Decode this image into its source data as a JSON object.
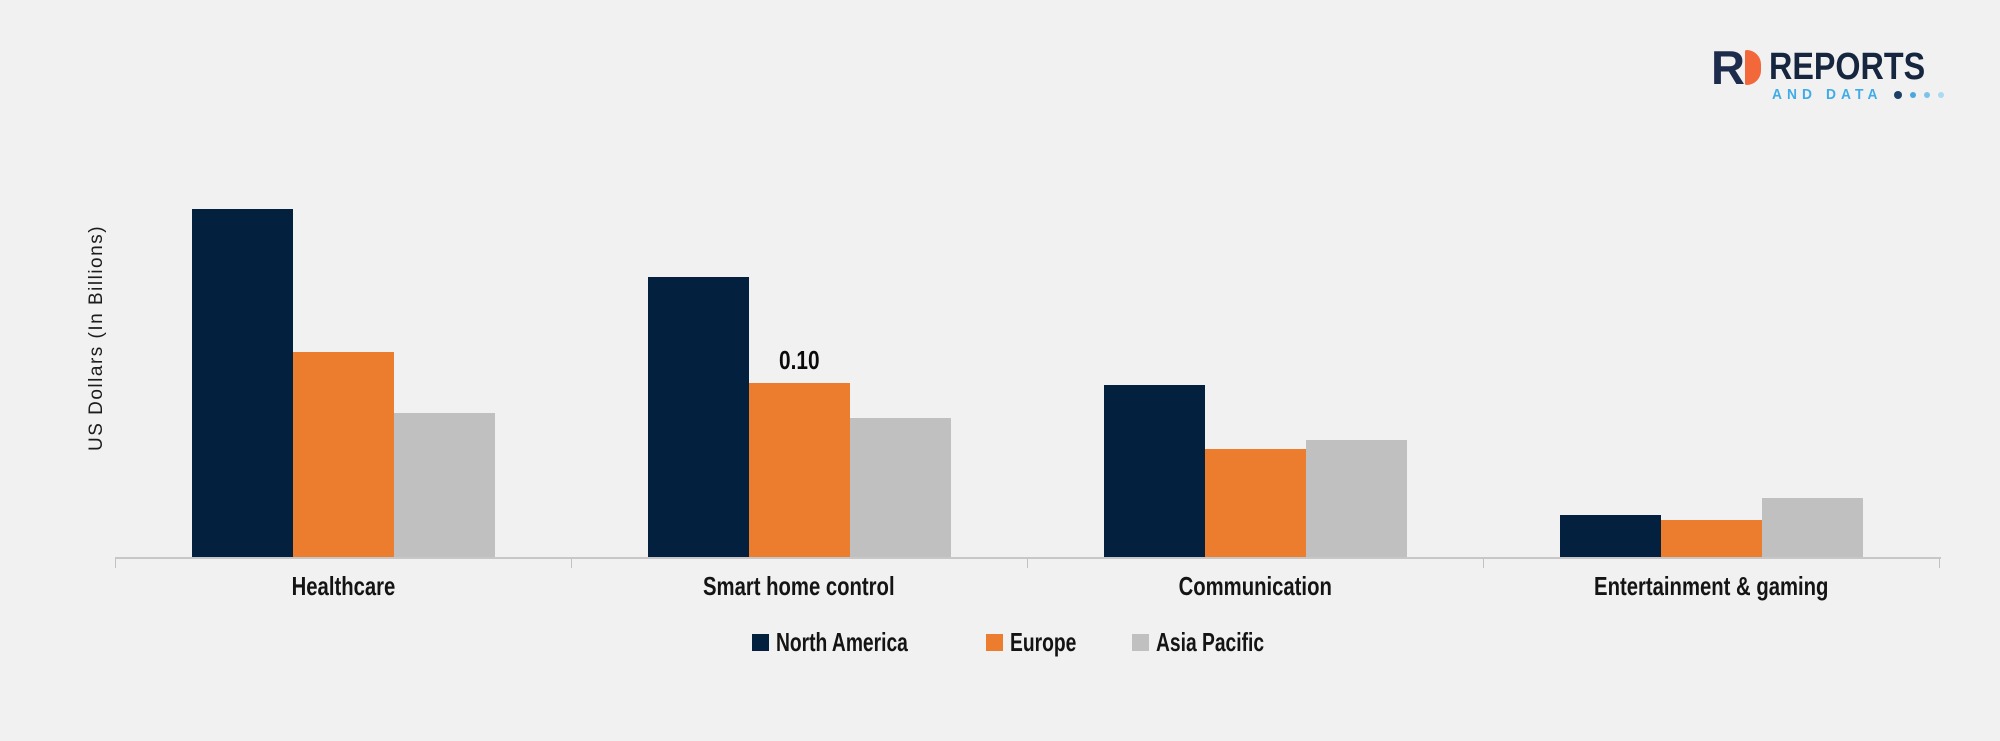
{
  "logo": {
    "mark_letter": "R",
    "title": "REPORTS",
    "subtitle": "AND DATA",
    "navy": "#17263f",
    "orange": "#f3683a",
    "blue": "#3face8"
  },
  "chart_data": {
    "type": "bar",
    "title": "",
    "xlabel": "",
    "ylabel": "US Dollars (In Billions)",
    "categories": [
      "Healthcare",
      "Smart home control",
      "Communication",
      "Entertainment & gaming"
    ],
    "series": [
      {
        "name": "North America",
        "color": "#03203f",
        "values": [
          0.2,
          0.161,
          0.099,
          0.024
        ]
      },
      {
        "name": "Europe",
        "color": "#ed7d2e",
        "values": [
          0.118,
          0.1,
          0.062,
          0.021
        ]
      },
      {
        "name": "Asia Pacific",
        "color": "#c0c0c1",
        "values": [
          0.083,
          0.08,
          0.067,
          0.034
        ]
      }
    ],
    "data_labels": [
      {
        "category_index": 1,
        "series_index": 1,
        "text": "0.10"
      }
    ],
    "ylim": [
      0,
      0.32
    ],
    "grid": false,
    "legend_position": "bottom",
    "background": "#f1f1f2",
    "axis_color": "#c7c7c8"
  }
}
